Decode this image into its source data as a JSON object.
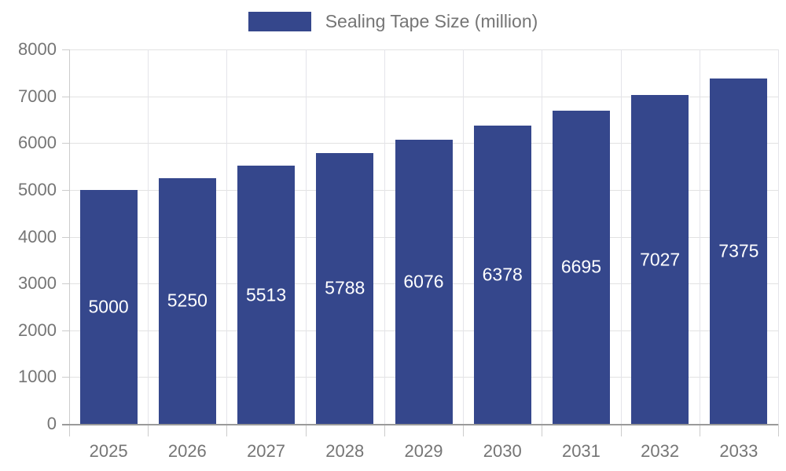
{
  "chart_data": {
    "type": "bar",
    "title": "Sealing Tape Size (million)",
    "legend": {
      "label": "Sealing Tape Size (million)",
      "position": "top-center"
    },
    "categories": [
      "2025",
      "2026",
      "2027",
      "2028",
      "2029",
      "2030",
      "2031",
      "2032",
      "2033"
    ],
    "series": [
      {
        "name": "Sealing Tape Size (million)",
        "values": [
          5000,
          5250,
          5513,
          5788,
          6076,
          6378,
          6695,
          7027,
          7375
        ]
      }
    ],
    "xlabel": "",
    "ylabel": "",
    "ylim": [
      0,
      8000
    ],
    "yticks": [
      0,
      1000,
      2000,
      3000,
      4000,
      5000,
      6000,
      7000,
      8000
    ],
    "grid": true,
    "bar_labels_inside": true,
    "colors": {
      "bar": "#35478C",
      "bar_value_text": "#ffffff",
      "axis_text": "#757575",
      "gridline": "#e2e2e2",
      "axis_line": "#9a9a9a",
      "tick_line": "#cccccc"
    }
  }
}
